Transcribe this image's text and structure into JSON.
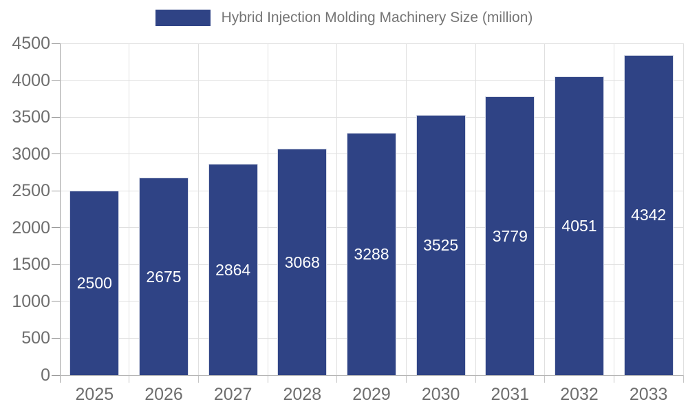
{
  "chart_data": {
    "type": "bar",
    "title": "Hybrid Injection Molding Machinery Size (million)",
    "series_name": "Hybrid Injection Molding Machinery Size (million)",
    "categories": [
      "2025",
      "2026",
      "2027",
      "2028",
      "2029",
      "2030",
      "2031",
      "2032",
      "2033"
    ],
    "values": [
      2500,
      2675,
      2864,
      3068,
      3288,
      3525,
      3779,
      4051,
      4342
    ],
    "xlabel": "",
    "ylabel": "",
    "ylim": [
      0,
      4500
    ],
    "yticks": [
      0,
      500,
      1000,
      1500,
      2000,
      2500,
      3000,
      3500,
      4000,
      4500
    ],
    "grid": true,
    "legend_position": "top",
    "bar_color": "#2F4385",
    "bar_value_label_color": "#ffffff",
    "legend_text_color": "#757575",
    "axis_label_color": "#6e6e6e",
    "gridline_color": "#e0e0e0",
    "axis_line_color": "#a3a3a3"
  }
}
